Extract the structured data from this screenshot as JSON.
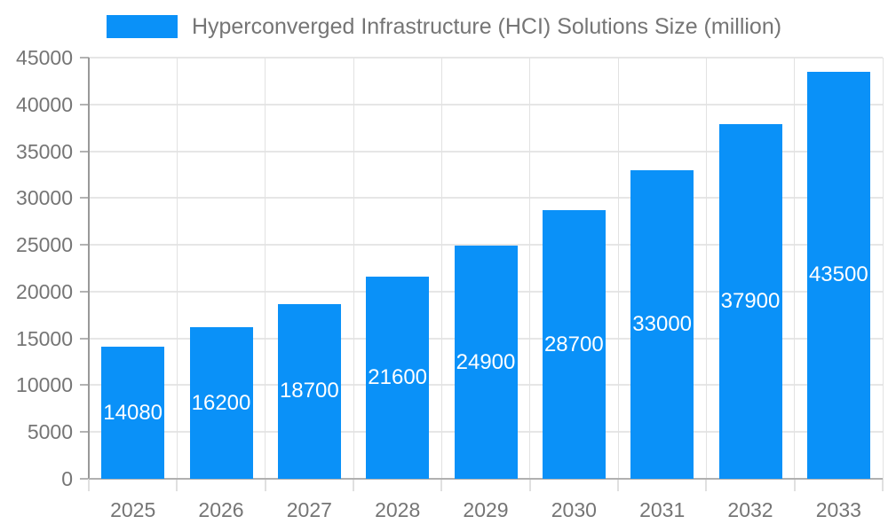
{
  "legend": {
    "swatch_color": "#0a91f8"
  },
  "chart_data": {
    "type": "bar",
    "title": "Hyperconverged Infrastructure (HCI) Solutions Size (million)",
    "series": [
      {
        "name": "Hyperconverged Infrastructure (HCI) Solutions Size (million)",
        "values": [
          14080,
          16200,
          18700,
          21600,
          24900,
          28700,
          33000,
          37900,
          43500
        ]
      }
    ],
    "categories": [
      "2025",
      "2026",
      "2027",
      "2028",
      "2029",
      "2030",
      "2031",
      "2032",
      "2033"
    ],
    "value_labels": [
      14080,
      16200,
      18700,
      21600,
      24900,
      28700,
      33000,
      37900,
      43500
    ],
    "xlabel": "",
    "ylabel": "",
    "ylim": [
      0,
      45000
    ],
    "yticks": [
      0,
      5000,
      10000,
      15000,
      20000,
      25000,
      30000,
      35000,
      40000,
      45000
    ],
    "grid": true,
    "legend_position": "top",
    "value_label_position": "inside-center",
    "colors": {
      "bar": "#0a91f8",
      "axis_text": "#757575",
      "grid_h": "#e6e6e6",
      "grid_v": "#e2e2e2",
      "axis_line": "#999999",
      "baseline": "#b0b0b0",
      "tick": "#b3b3b3",
      "xtick": "#e0e0e0",
      "value_label": "#ffffff",
      "background": "#ffffff"
    }
  }
}
